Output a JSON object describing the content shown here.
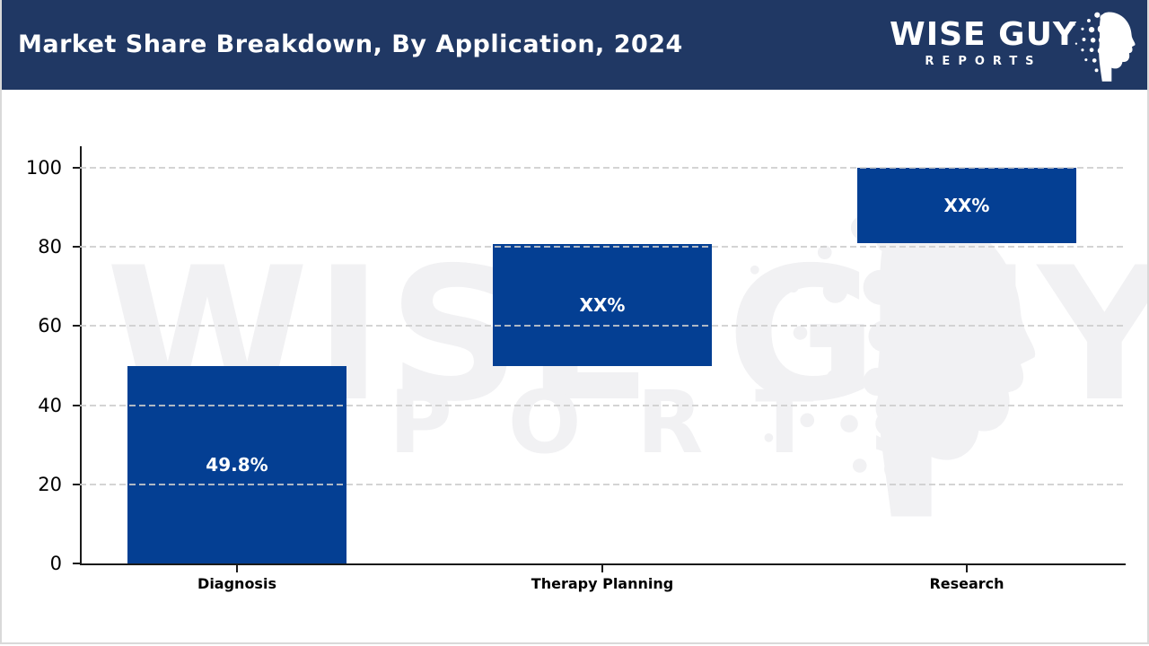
{
  "header": {
    "title": "Market Share Breakdown, By Application, 2024",
    "brand": {
      "name_top": "WISE GUY",
      "name_bottom": "REPORTS"
    }
  },
  "watermark": {
    "line1": "WISE GUY",
    "line2": "REPORTS"
  },
  "chart_data": {
    "type": "bar",
    "subtype": "waterfall",
    "title": "Market Share Breakdown, By Application, 2024",
    "categories": [
      "Diagnosis",
      "Therapy Planning",
      "Research"
    ],
    "segments": [
      {
        "category": "Diagnosis",
        "start": 0.0,
        "end": 49.8,
        "label": "49.8%"
      },
      {
        "category": "Therapy Planning",
        "start": 49.8,
        "end": 80.7,
        "label": "XX%"
      },
      {
        "category": "Research",
        "start": 81.0,
        "end": 100.0,
        "label": "XX%"
      }
    ],
    "yticks": [
      0,
      20,
      40,
      60,
      80,
      100
    ],
    "ylim": [
      0,
      100
    ],
    "xlabel": "",
    "ylabel": "",
    "legend": "none",
    "grid": "horizontal-dashed"
  },
  "colors": {
    "header_bg": "#203864",
    "bar": "#043f93",
    "bar_label": "#ffffff",
    "grid": "#d9d9d9",
    "axis": "#1a1a1a",
    "watermark": "#f1f1f3",
    "page_border": "#d9d9d9"
  }
}
